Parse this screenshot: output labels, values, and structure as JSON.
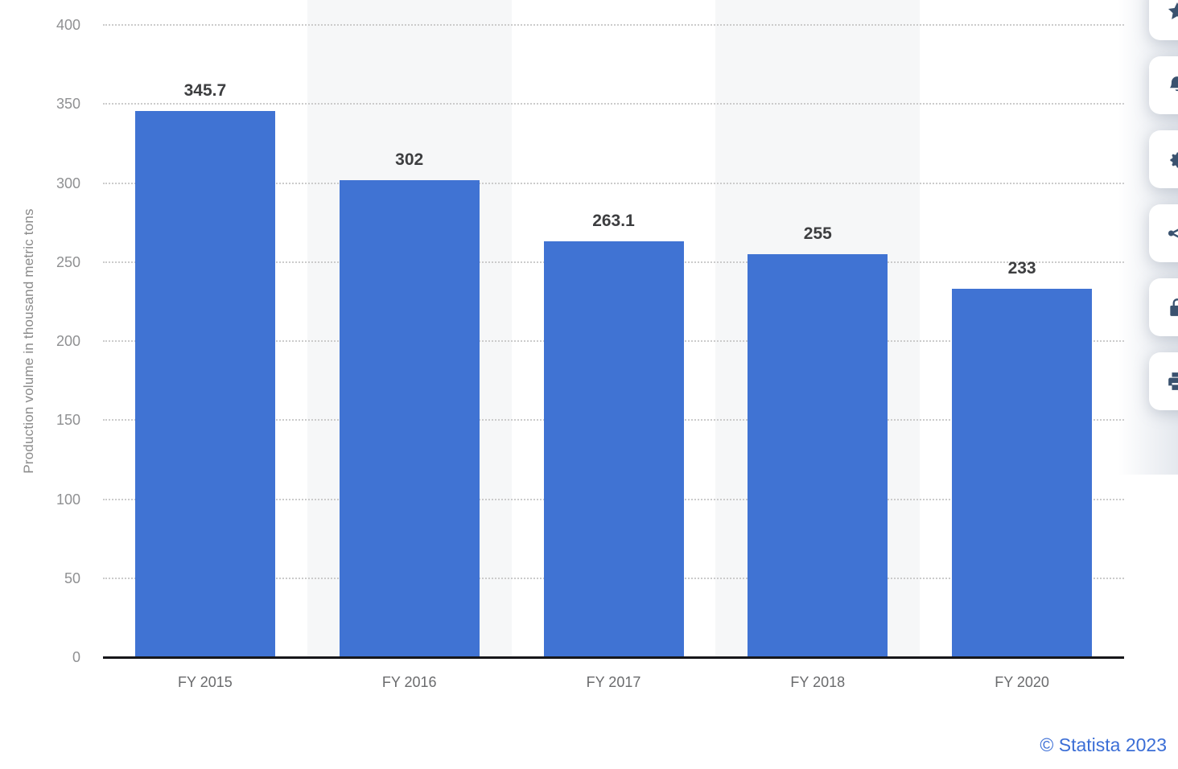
{
  "chart_data": {
    "type": "bar",
    "categories": [
      "FY 2015",
      "FY 2016",
      "FY 2017",
      "FY 2018",
      "FY 2020"
    ],
    "values": [
      345.7,
      302,
      263.1,
      255,
      233
    ],
    "value_labels": [
      "345.7",
      "302",
      "263.1",
      "255",
      "233"
    ],
    "title": "",
    "xlabel": "",
    "ylabel": "Production volume in thousand metric tons",
    "ylim": [
      0,
      400
    ],
    "yticks": [
      0,
      50,
      100,
      150,
      200,
      250,
      300,
      350,
      400
    ],
    "grid": "horizontal dotted gridlines at each 50 step, no gridline at 0 (solid black baseline)",
    "legend": "none",
    "bar_color": "#4073d3",
    "stripe_color": "#f6f7f8",
    "striped_category_indexes": [
      1,
      3
    ]
  },
  "credit": "© Statista 2023",
  "colors": {
    "bar": "#4073d3",
    "column_stripe": "#f6f7f8",
    "gridline": "#cbcbcb",
    "axis_line": "#16161a",
    "tick_label": "#8f9092",
    "y_axis_title": "#8a8a8a",
    "value_label": "#3d3e40",
    "x_label": "#6a6b6d",
    "credit_link": "#3b6ed6",
    "toolbar_icon": "#3a526f"
  },
  "toolbar": {
    "buttons": [
      {
        "name": "favorite",
        "icon": "star-icon"
      },
      {
        "name": "alert",
        "icon": "bell-icon"
      },
      {
        "name": "settings",
        "icon": "gear-icon"
      },
      {
        "name": "share",
        "icon": "share-icon"
      },
      {
        "name": "unlock",
        "icon": "lock-icon"
      },
      {
        "name": "print",
        "icon": "print-icon"
      }
    ]
  }
}
